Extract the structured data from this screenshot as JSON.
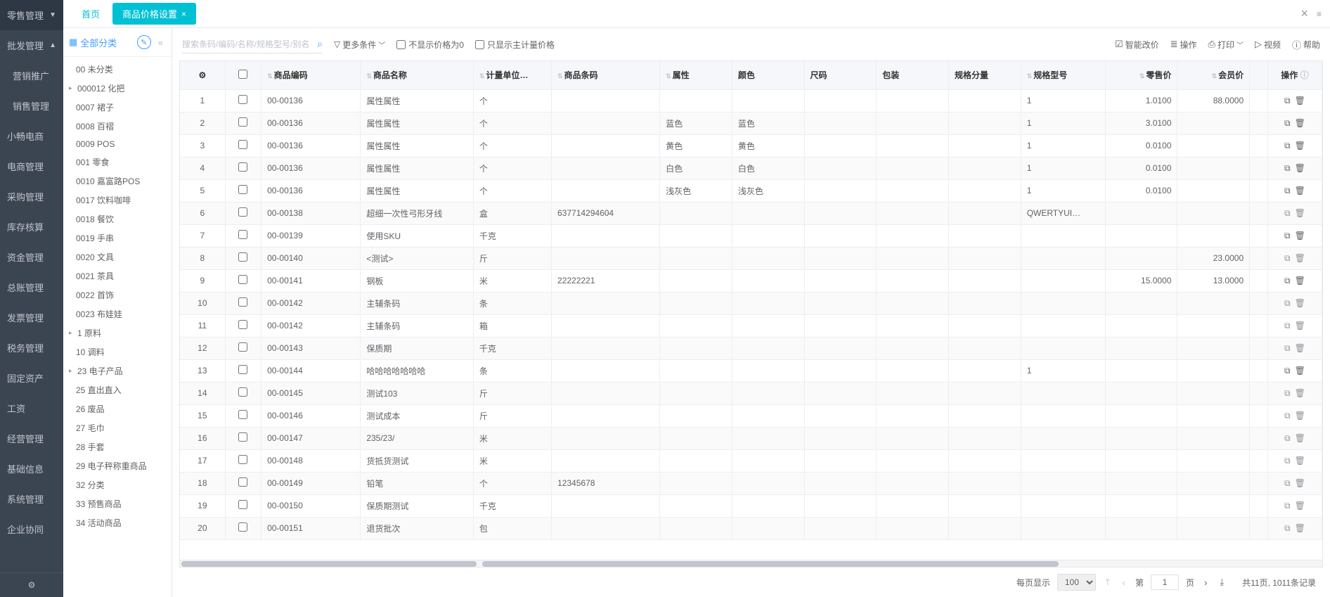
{
  "sidebar": {
    "items": [
      {
        "label": "零售管理",
        "caret": "▼"
      },
      {
        "label": "批发管理",
        "caret": "▲"
      },
      {
        "label": "营销推广"
      },
      {
        "label": "销售管理"
      },
      {
        "label": "小畅电商"
      },
      {
        "label": "电商管理"
      },
      {
        "label": "采购管理"
      },
      {
        "label": "库存核算"
      },
      {
        "label": "资金管理"
      },
      {
        "label": "总账管理"
      },
      {
        "label": "发票管理"
      },
      {
        "label": "税务管理"
      },
      {
        "label": "固定资产"
      },
      {
        "label": "工资"
      },
      {
        "label": "经营管理"
      },
      {
        "label": "基础信息"
      },
      {
        "label": "系统管理"
      },
      {
        "label": "企业协同"
      }
    ],
    "footer_icon": "⚙"
  },
  "tabs": {
    "home": "首页",
    "active": "商品价格设置",
    "close": "×",
    "right_close": "×"
  },
  "tree": {
    "header": "全部分类",
    "collapse": "«",
    "nodes": [
      {
        "label": "00 未分类",
        "indent": 2
      },
      {
        "label": "000012 化把",
        "indent": 1,
        "caret": "▸"
      },
      {
        "label": "0007 裙子",
        "indent": 2
      },
      {
        "label": "0008 百褶",
        "indent": 2
      },
      {
        "label": "0009 POS",
        "indent": 2
      },
      {
        "label": "001 零食",
        "indent": 2
      },
      {
        "label": "0010 嘉富路POS",
        "indent": 2
      },
      {
        "label": "0017 饮料咖啡",
        "indent": 2
      },
      {
        "label": "0018 餐饮",
        "indent": 2
      },
      {
        "label": "0019 手串",
        "indent": 2
      },
      {
        "label": "0020 文具",
        "indent": 2
      },
      {
        "label": "0021 茶具",
        "indent": 2
      },
      {
        "label": "0022 首饰",
        "indent": 2
      },
      {
        "label": "0023 布娃娃",
        "indent": 2
      },
      {
        "label": "1 原料",
        "indent": 1,
        "caret": "▸"
      },
      {
        "label": "10 调料",
        "indent": 2
      },
      {
        "label": "23 电子产品",
        "indent": 1,
        "caret": "▸"
      },
      {
        "label": "25 直出直入",
        "indent": 2
      },
      {
        "label": "26 废品",
        "indent": 2
      },
      {
        "label": "27 毛巾",
        "indent": 2
      },
      {
        "label": "28 手套",
        "indent": 2
      },
      {
        "label": "29 电子秤称重商品",
        "indent": 2
      },
      {
        "label": "32 分类",
        "indent": 2
      },
      {
        "label": "33 预售商品",
        "indent": 2
      },
      {
        "label": "34 活动商品",
        "indent": 2
      }
    ]
  },
  "toolbar": {
    "search_placeholder": "搜索条码/编码/名称/规格型号/别名",
    "more_filters": "更多条件",
    "chk_hide_zero": "不显示价格为0",
    "chk_main_unit": "只显示主计量价格",
    "smart_price": "智能改价",
    "operate": "操作",
    "print": "打印",
    "video": "视频",
    "help": "帮助"
  },
  "table": {
    "columns": {
      "gear": "⚙",
      "code": "商品编码",
      "name": "商品名称",
      "unit": "计量单位…",
      "barcode": "商品条码",
      "attr": "属性",
      "color": "颜色",
      "size": "尺码",
      "pack": "包装",
      "spec_qty": "规格分量",
      "spec_model": "规格型号",
      "retail": "零售价",
      "member": "会员价",
      "ops": "操作"
    },
    "rows": [
      {
        "idx": "1",
        "code": "00-00136",
        "name": "属性属性",
        "unit": "个",
        "barcode": "",
        "attr": "",
        "color": "",
        "spec": "1",
        "retail": "1.0100",
        "member": "88.0000",
        "ops_active": true
      },
      {
        "idx": "2",
        "code": "00-00136",
        "name": "属性属性",
        "unit": "个",
        "barcode": "",
        "attr": "蓝色",
        "color": "蓝色",
        "spec": "1",
        "retail": "3.0100",
        "member": "",
        "ops_active": true
      },
      {
        "idx": "3",
        "code": "00-00136",
        "name": "属性属性",
        "unit": "个",
        "barcode": "",
        "attr": "黄色",
        "color": "黄色",
        "spec": "1",
        "retail": "0.0100",
        "member": "",
        "ops_active": true
      },
      {
        "idx": "4",
        "code": "00-00136",
        "name": "属性属性",
        "unit": "个",
        "barcode": "",
        "attr": "白色",
        "color": "白色",
        "spec": "1",
        "retail": "0.0100",
        "member": "",
        "ops_active": true
      },
      {
        "idx": "5",
        "code": "00-00136",
        "name": "属性属性",
        "unit": "个",
        "barcode": "",
        "attr": "浅灰色",
        "color": "浅灰色",
        "spec": "1",
        "retail": "0.0100",
        "member": "",
        "ops_active": true
      },
      {
        "idx": "6",
        "code": "00-00138",
        "name": "超细一次性弓形牙线",
        "unit": "盒",
        "barcode": "637714294604",
        "attr": "",
        "color": "",
        "spec": "QWERTYUI…",
        "retail": "",
        "member": "",
        "ops_active": false
      },
      {
        "idx": "7",
        "code": "00-00139",
        "name": "使用SKU",
        "unit": "千克",
        "barcode": "",
        "attr": "",
        "color": "",
        "spec": "",
        "retail": "",
        "member": "",
        "ops_active": true
      },
      {
        "idx": "8",
        "code": "00-00140",
        "name": "<测试>",
        "unit": "斤",
        "barcode": "",
        "attr": "",
        "color": "",
        "spec": "",
        "retail": "",
        "member": "23.0000",
        "ops_active": false
      },
      {
        "idx": "9",
        "code": "00-00141",
        "name": "钢板",
        "unit": "米",
        "barcode": "22222221",
        "attr": "",
        "color": "",
        "spec": "",
        "retail": "15.0000",
        "member": "13.0000",
        "ops_active": true
      },
      {
        "idx": "10",
        "code": "00-00142",
        "name": "主辅条码",
        "unit": "条",
        "barcode": "",
        "attr": "",
        "color": "",
        "spec": "",
        "retail": "",
        "member": "",
        "ops_active": false
      },
      {
        "idx": "11",
        "code": "00-00142",
        "name": "主辅条码",
        "unit": "箱",
        "barcode": "",
        "attr": "",
        "color": "",
        "spec": "",
        "retail": "",
        "member": "",
        "ops_active": false
      },
      {
        "idx": "12",
        "code": "00-00143",
        "name": "保质期",
        "unit": "千克",
        "barcode": "",
        "attr": "",
        "color": "",
        "spec": "",
        "retail": "",
        "member": "",
        "ops_active": false
      },
      {
        "idx": "13",
        "code": "00-00144",
        "name": "哈哈哈哈哈哈哈",
        "unit": "条",
        "barcode": "",
        "attr": "",
        "color": "",
        "spec": "1",
        "retail": "",
        "member": "",
        "ops_active": true
      },
      {
        "idx": "14",
        "code": "00-00145",
        "name": "测试103",
        "unit": "斤",
        "barcode": "",
        "attr": "",
        "color": "",
        "spec": "",
        "retail": "",
        "member": "",
        "ops_active": false
      },
      {
        "idx": "15",
        "code": "00-00146",
        "name": "测试成本",
        "unit": "斤",
        "barcode": "",
        "attr": "",
        "color": "",
        "spec": "",
        "retail": "",
        "member": "",
        "ops_active": false
      },
      {
        "idx": "16",
        "code": "00-00147",
        "name": "235/23/",
        "unit": "米",
        "barcode": "",
        "attr": "",
        "color": "",
        "spec": "",
        "retail": "",
        "member": "",
        "ops_active": false
      },
      {
        "idx": "17",
        "code": "00-00148",
        "name": "货抵货测试",
        "unit": "米",
        "barcode": "",
        "attr": "",
        "color": "",
        "spec": "",
        "retail": "",
        "member": "",
        "ops_active": false
      },
      {
        "idx": "18",
        "code": "00-00149",
        "name": "铅笔",
        "unit": "个",
        "barcode": "12345678",
        "attr": "",
        "color": "",
        "spec": "",
        "retail": "",
        "member": "",
        "ops_active": false
      },
      {
        "idx": "19",
        "code": "00-00150",
        "name": "保质期测试",
        "unit": "千克",
        "barcode": "",
        "attr": "",
        "color": "",
        "spec": "",
        "retail": "",
        "member": "",
        "ops_active": false
      },
      {
        "idx": "20",
        "code": "00-00151",
        "name": "退货批次",
        "unit": "包",
        "barcode": "",
        "attr": "",
        "color": "",
        "spec": "",
        "retail": "",
        "member": "",
        "ops_active": false
      }
    ]
  },
  "pager": {
    "per_page_label": "每页显示",
    "per_page_value": "100",
    "page_prefix": "第",
    "page_value": "1",
    "page_suffix": "页",
    "summary": "共11页, 1011条记录"
  },
  "colors": {
    "sidebar_bg": "#3b4552",
    "accent": "#00c1d4",
    "link": "#409eff",
    "border": "#e4e7ed",
    "header_bg": "#f5f7fa"
  }
}
